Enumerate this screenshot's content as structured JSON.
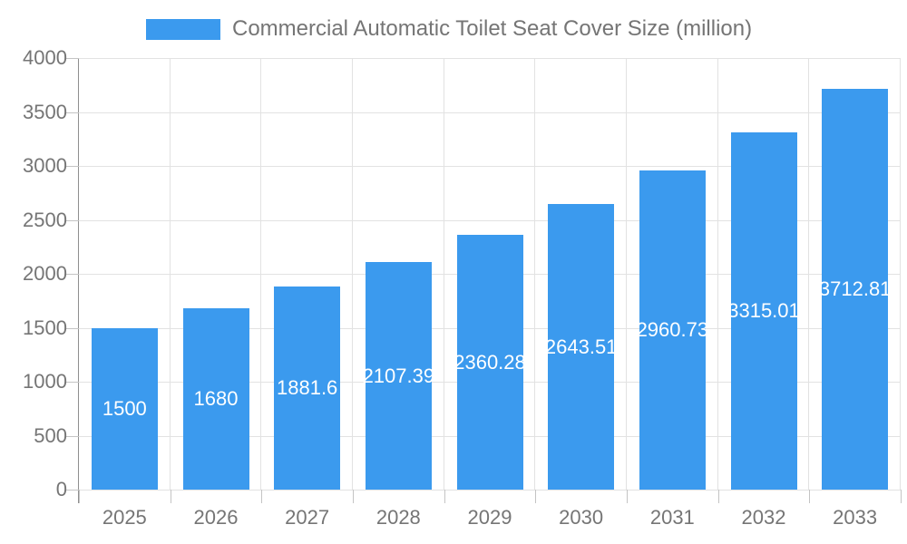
{
  "legend": {
    "swatch_color": "#3b9aee",
    "label": "Commercial Automatic Toilet Seat Cover Size (million)"
  },
  "chart_data": {
    "type": "bar",
    "title": "Commercial Automatic Toilet Seat Cover Size (million)",
    "xlabel": "",
    "ylabel": "",
    "categories": [
      "2025",
      "2026",
      "2027",
      "2028",
      "2029",
      "2030",
      "2031",
      "2032",
      "2033"
    ],
    "values": [
      1500,
      1680,
      1881.6,
      2107.39,
      2360.28,
      2643.51,
      2960.73,
      3315.01,
      3712.81
    ],
    "bar_labels": [
      "1500",
      "1680",
      "1881.6",
      "2107.39",
      "2360.28",
      "2643.51",
      "2960.73",
      "3315.01",
      "3712.81"
    ],
    "series": [
      {
        "name": "Commercial Automatic Toilet Seat Cover Size (million)",
        "values": [
          1500,
          1680,
          1881.6,
          2107.39,
          2360.28,
          2643.51,
          2960.73,
          3315.01,
          3712.81
        ]
      }
    ],
    "ylim": [
      0,
      4000
    ],
    "yticks": [
      0,
      500,
      1000,
      1500,
      2000,
      2500,
      3000,
      3500,
      4000
    ],
    "grid": true,
    "legend_position": "top",
    "value_label_position": "center-inside",
    "colors": {
      "bar": "#3b9aee",
      "bar_label": "#ffffff",
      "axis_text": "#757575",
      "grid": "#e2e2e2",
      "tick": "#c4c4c4",
      "axis_line": "#8f8f8f",
      "background": "#ffffff"
    }
  }
}
